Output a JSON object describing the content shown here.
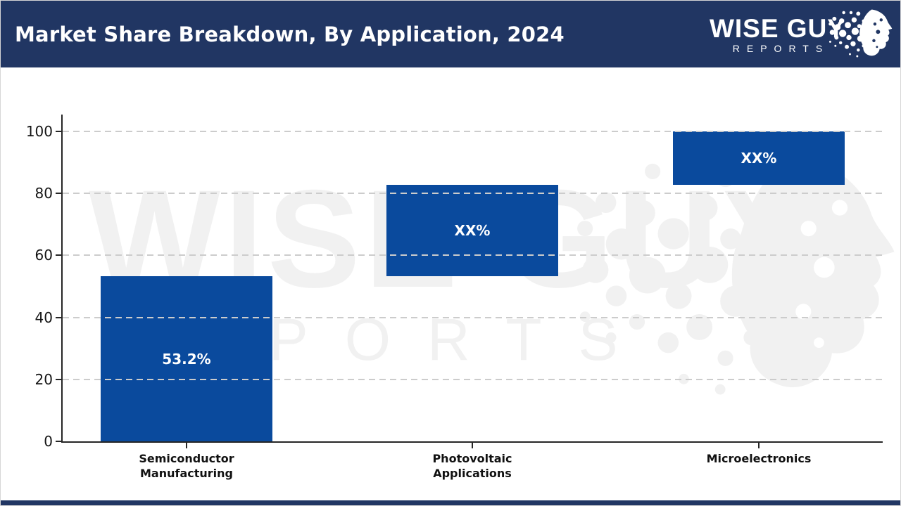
{
  "header": {
    "title": "Market Share Breakdown, By Application, 2024",
    "logo": {
      "brand_top": "WISE GUY",
      "brand_bottom": "REPORTS"
    }
  },
  "watermark": {
    "line1": "WISE GUY",
    "line2": "REPORTS"
  },
  "colors": {
    "header_bg": "#213663",
    "footer_bg": "#213663",
    "bar": "#0a4a9d",
    "bar_label": "#ffffff",
    "grid": "#cccccc",
    "axis": "#262626",
    "watermark": "#f1f1f1"
  },
  "chart_data": {
    "type": "bar",
    "subtype": "stacked-waterfall-segments",
    "title": "Market Share Breakdown, By Application, 2024",
    "categories": [
      "Semiconductor\nManufacturing",
      "Photovoltaic\nApplications",
      "Microelectronics"
    ],
    "segments": [
      {
        "category": "Semiconductor Manufacturing",
        "start": 0,
        "end": 53.2,
        "label": "53.2%"
      },
      {
        "category": "Photovoltaic Applications",
        "start": 53.2,
        "end": 82.7,
        "label": "XX%"
      },
      {
        "category": "Microelectronics",
        "start": 82.7,
        "end": 100,
        "label": "XX%"
      }
    ],
    "yticks": [
      0,
      20,
      40,
      60,
      80,
      100
    ],
    "ylim": [
      0,
      100
    ],
    "xlabel": "",
    "ylabel": "",
    "grid": "horizontal-dashed",
    "legend": "none"
  }
}
